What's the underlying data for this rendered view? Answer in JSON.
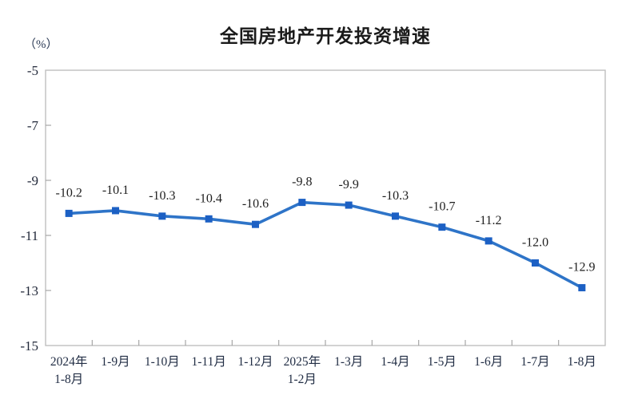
{
  "chart_data": {
    "type": "line",
    "title": "全国房地产开发投资增速",
    "unit_label": "（%）",
    "series_name": "全国房地产开发投资增速",
    "categories": [
      [
        "2024年",
        "1-8月"
      ],
      [
        "1-9月"
      ],
      [
        "1-10月"
      ],
      [
        "1-11月"
      ],
      [
        "1-12月"
      ],
      [
        "2025年",
        "1-2月"
      ],
      [
        "1-3月"
      ],
      [
        "1-4月"
      ],
      [
        "1-5月"
      ],
      [
        "1-6月"
      ],
      [
        "1-7月"
      ],
      [
        "1-8月"
      ]
    ],
    "values": [
      -10.2,
      -10.1,
      -10.3,
      -10.4,
      -10.6,
      -9.8,
      -9.9,
      -10.3,
      -10.7,
      -11.2,
      -12.0,
      -12.9
    ],
    "data_labels": [
      "-10.2",
      "-10.1",
      "-10.3",
      "-10.4",
      "-10.6",
      "-9.8",
      "-9.9",
      "-10.3",
      "-10.7",
      "-11.2",
      "-12.0",
      "-12.9"
    ],
    "y_ticks": [
      -5,
      -7,
      -9,
      -11,
      -13,
      -15
    ],
    "ylim": [
      -15,
      -5
    ],
    "grid": false,
    "legend_position": "none",
    "line_color": "#2E74C8",
    "marker_color": "#1C60C4",
    "marker_shape": "square",
    "axis_color": "#BFBFBF",
    "tick_color": "#A6A6A6"
  }
}
